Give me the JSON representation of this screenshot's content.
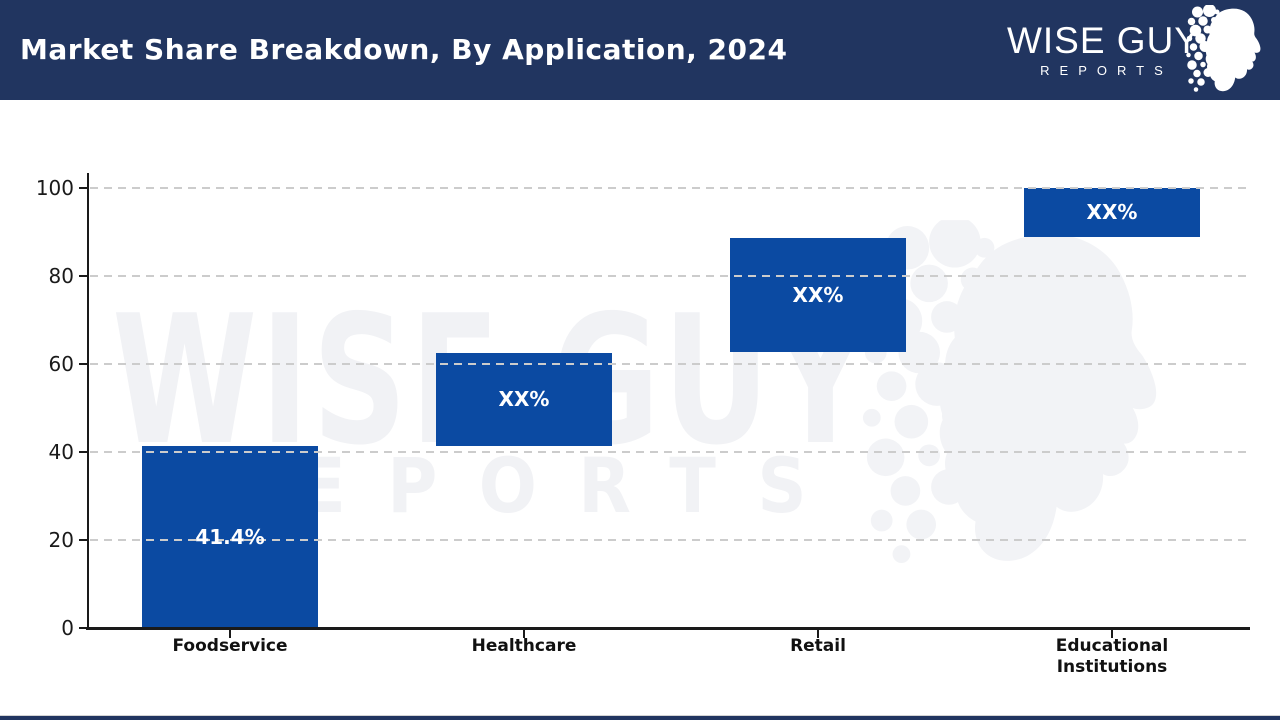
{
  "header": {
    "title": "Market Share Breakdown, By Application, 2024",
    "bg_color": "#213560",
    "logo": {
      "line1": "WISE GUY",
      "line2": "REPORTS"
    }
  },
  "watermark": {
    "line1": "WISE GUY",
    "line2": "REPORTS"
  },
  "chart_data": {
    "type": "bar",
    "subtype": "waterfall",
    "title": "Market Share Breakdown, By Application, 2024",
    "unit": "%",
    "ylim": [
      0,
      100
    ],
    "yticks": [
      0,
      20,
      40,
      60,
      80,
      100
    ],
    "grid": "dashed horizontal gridlines",
    "legend": "none",
    "bar_color": "#0b4aa2",
    "bars": [
      {
        "category": "Foodservice",
        "label": "41.4%",
        "start": 0,
        "end": 41.4
      },
      {
        "category": "Healthcare",
        "label": "XX%",
        "start": 41.4,
        "end": 62.5
      },
      {
        "category": "Retail",
        "label": "XX%",
        "start": 62.7,
        "end": 88.6
      },
      {
        "category": "Educational\nInstitutions",
        "label": "XX%",
        "start": 88.9,
        "end": 100
      }
    ]
  }
}
